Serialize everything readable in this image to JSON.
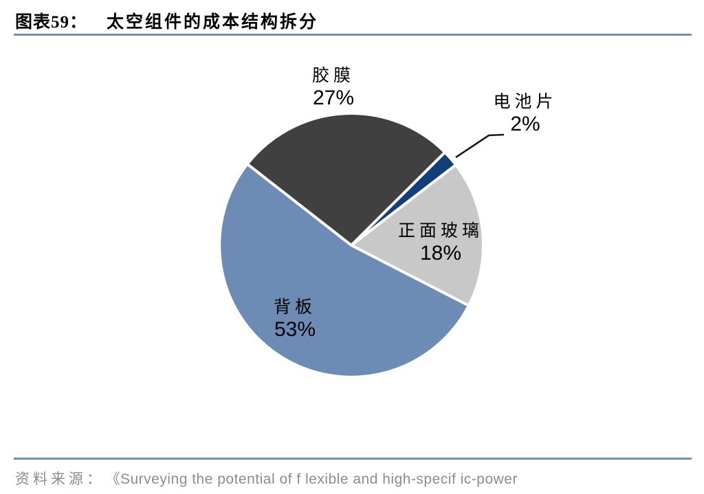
{
  "header": {
    "title_prefix": "图表59：",
    "title": "太空组件的成本结构拆分",
    "rule_color": "#6E8FB9"
  },
  "chart_data": {
    "type": "pie",
    "title": "太空组件的成本结构拆分",
    "unit": "%",
    "direction": "clockwise",
    "start_angle_deg": -52,
    "legend": "none",
    "slice_border_color": "#FFFFFF",
    "slices": [
      {
        "label": "胶膜",
        "value": 27,
        "pct_label": "27%",
        "color": "#404040",
        "label_position": "outside-top"
      },
      {
        "label": "电池片",
        "value": 2,
        "pct_label": "2%",
        "color": "#133E7C",
        "label_position": "outside-right-with-leader"
      },
      {
        "label": "正面玻璃",
        "value": 18,
        "pct_label": "18%",
        "color": "#C8C8C8",
        "label_position": "inside"
      },
      {
        "label": "背板",
        "value": 53,
        "pct_label": "53%",
        "color": "#6C8CB5",
        "label_position": "inside"
      }
    ]
  },
  "source": {
    "prefix": "资料来源：",
    "citation": "《Surveying the potential of f lexible and high-specif ic-power"
  }
}
